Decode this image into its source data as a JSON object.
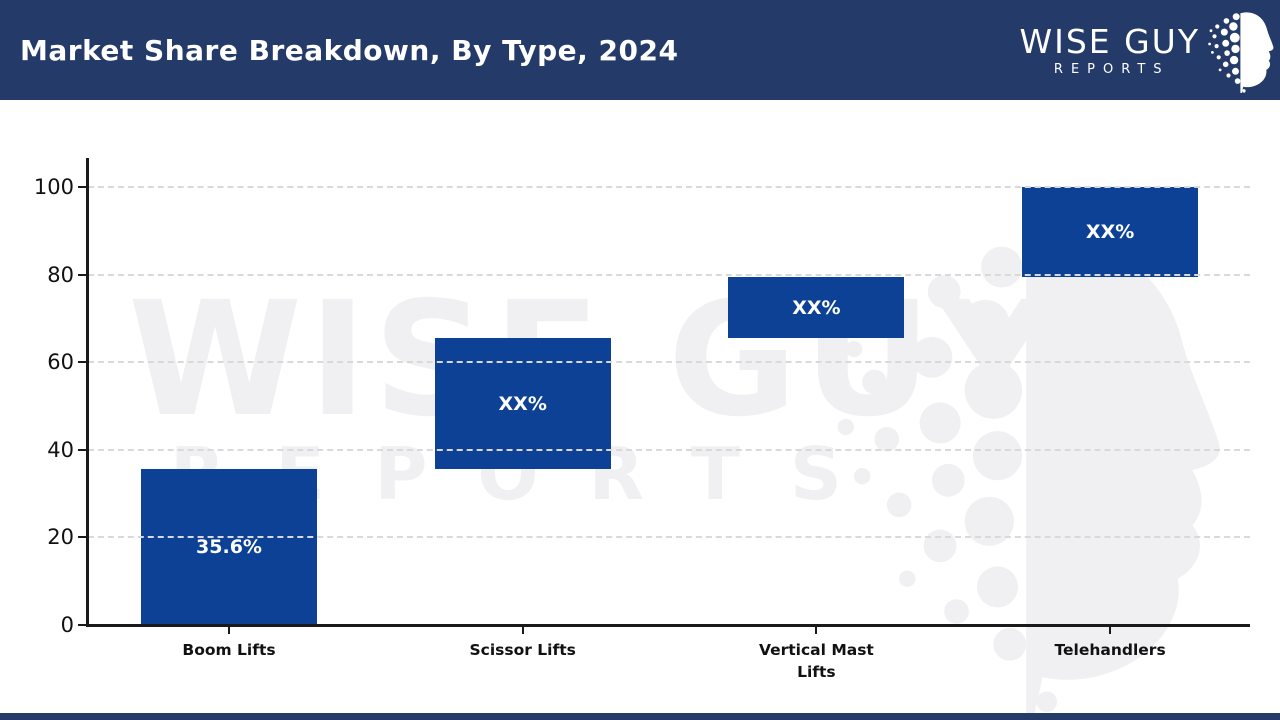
{
  "header": {
    "title": "Market Share Breakdown, By Type, 2024",
    "logo": {
      "name": "WISE GUY",
      "sub": "REPORTS"
    }
  },
  "watermark": {
    "name": "WISE GUY",
    "sub": "REPORTS"
  },
  "chart_data": {
    "type": "bar",
    "subtype": "floating-cascade-bars",
    "title": "Market Share Breakdown, By Type, 2024",
    "xlabel": "",
    "ylabel": "",
    "ylim": [
      0,
      100
    ],
    "yticks": [
      0,
      20,
      40,
      60,
      80,
      100
    ],
    "grid": "horizontal-dashed",
    "legend": "none",
    "categories": [
      "Boom Lifts",
      "Scissor Lifts",
      "Vertical Mast Lifts",
      "Telehandlers"
    ],
    "bars": [
      {
        "category": "Boom Lifts",
        "start": 0,
        "end": 35.6,
        "label": "35.6%"
      },
      {
        "category": "Scissor Lifts",
        "start": 35.6,
        "end": 65.5,
        "label": "XX%"
      },
      {
        "category": "Vertical Mast Lifts",
        "start": 65.5,
        "end": 79.4,
        "label": "XX%"
      },
      {
        "category": "Telehandlers",
        "start": 79.4,
        "end": 100,
        "label": "XX%"
      }
    ]
  },
  "colors": {
    "header_bg": "#243a68",
    "footer_bg": "#243a68",
    "bar_fill": "#0c4195",
    "bar_label_text": "#ffffff",
    "title_text": "#ffffff",
    "watermark": "#f0f0f3",
    "gridline": "#d9d9d9",
    "axis": "#1a1a1a"
  }
}
